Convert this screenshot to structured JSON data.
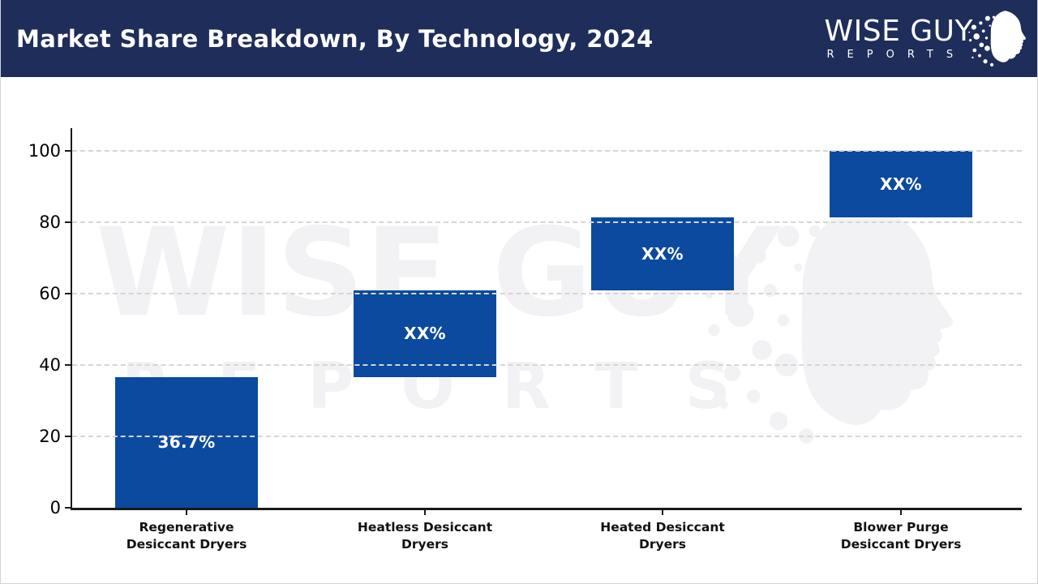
{
  "header": {
    "title": "Market Share Breakdown, By Technology, 2024",
    "logo": {
      "line1": "WISE GUY",
      "line2": "REPORTS"
    },
    "bg_color": "#1f2d5a"
  },
  "watermark": {
    "line1": "WISE GUY",
    "line2": "REPORTS"
  },
  "chart_data": {
    "type": "bar",
    "subtype": "floating-waterfall",
    "title": "Market Share Breakdown, By Technology, 2024",
    "categories": [
      "Regenerative Desiccant Dryers",
      "Heatless Desiccant Dryers",
      "Heated Desiccant Dryers",
      "Blower Purge Desiccant Dryers"
    ],
    "series": [
      {
        "name": "Market share (%)",
        "segments": [
          {
            "start": 0,
            "end": 36.7,
            "label": "36.7%"
          },
          {
            "start": 36.7,
            "end": 61,
            "label": "XX%"
          },
          {
            "start": 61,
            "end": 81.4,
            "label": "XX%"
          },
          {
            "start": 81.4,
            "end": 100,
            "label": "XX%"
          }
        ]
      }
    ],
    "xlabel": "",
    "ylabel": "",
    "ylim": [
      0,
      105
    ],
    "yticks": [
      0,
      20,
      40,
      60,
      80,
      100
    ],
    "grid": "horizontal-dashed",
    "legend": false,
    "colors": {
      "bar": "#0b4a9e",
      "bar_label": "#ffffff",
      "gridline": "#d6d6d6",
      "axis": "#1a1a1a",
      "watermark": "#f2f2f4"
    }
  }
}
